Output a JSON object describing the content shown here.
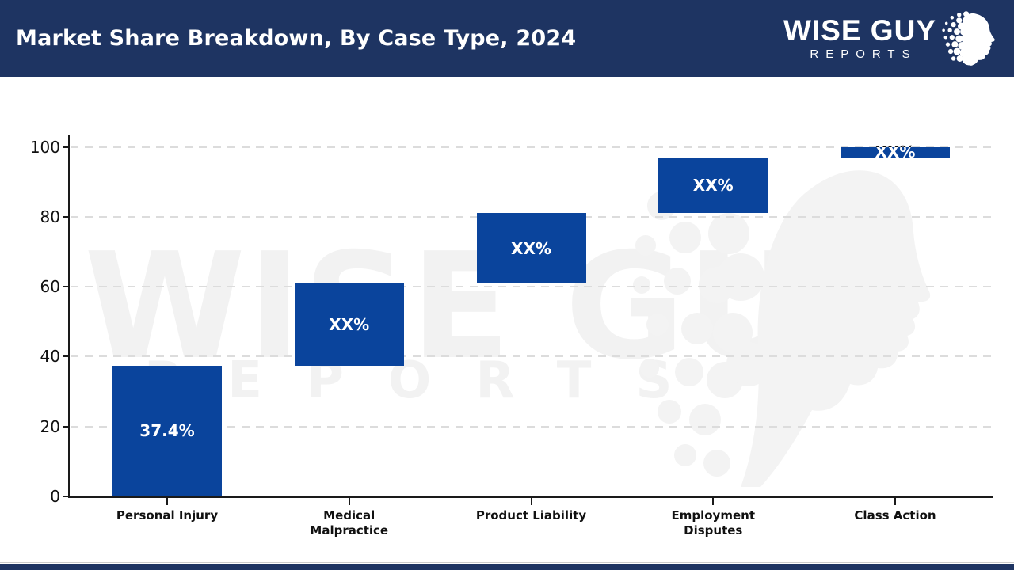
{
  "header": {
    "title": "Market Share Breakdown, By Case Type, 2024",
    "logo": {
      "line1": "WISE GUY",
      "line2": "REPORTS"
    }
  },
  "watermark": {
    "line1": "WISE GUY",
    "line2": "REPORTS"
  },
  "chart_data": {
    "type": "bar",
    "subtype": "waterfall",
    "title": "Market Share Breakdown, By Case Type, 2024",
    "categories": [
      "Personal Injury",
      "Medical\nMalpractice",
      "Product Liability",
      "Employment\nDisputes",
      "Class Action"
    ],
    "segments": [
      {
        "category": "Personal Injury",
        "start": 0,
        "end": 37.4,
        "delta": 37.4,
        "label": "37.4%"
      },
      {
        "category": "Medical Malpractice",
        "start": 37.4,
        "end": 61,
        "delta": 23.6,
        "label": "XX%"
      },
      {
        "category": "Product Liability",
        "start": 61,
        "end": 81,
        "delta": 20,
        "label": "XX%"
      },
      {
        "category": "Employment Disputes",
        "start": 81,
        "end": 97,
        "delta": 16,
        "label": "XX%"
      },
      {
        "category": "Class Action",
        "start": 97,
        "end": 100,
        "delta": 3,
        "label": "XX%"
      }
    ],
    "yticks": [
      0,
      20,
      40,
      60,
      80,
      100
    ],
    "ylim": [
      0,
      105
    ],
    "xlabel": "",
    "ylabel": "",
    "grid": "horizontal-dashed",
    "legend_position": "none",
    "bar_color": "#0a449c",
    "bar_label_color": "#ffffff",
    "overflow_label_color": "#111111"
  },
  "colors": {
    "header_bg": "#1e3462",
    "footer_bg": "#1e3462",
    "grid": "#dcdcdc",
    "axis": "#1a1a1a",
    "watermark": "#f2f2f2"
  }
}
